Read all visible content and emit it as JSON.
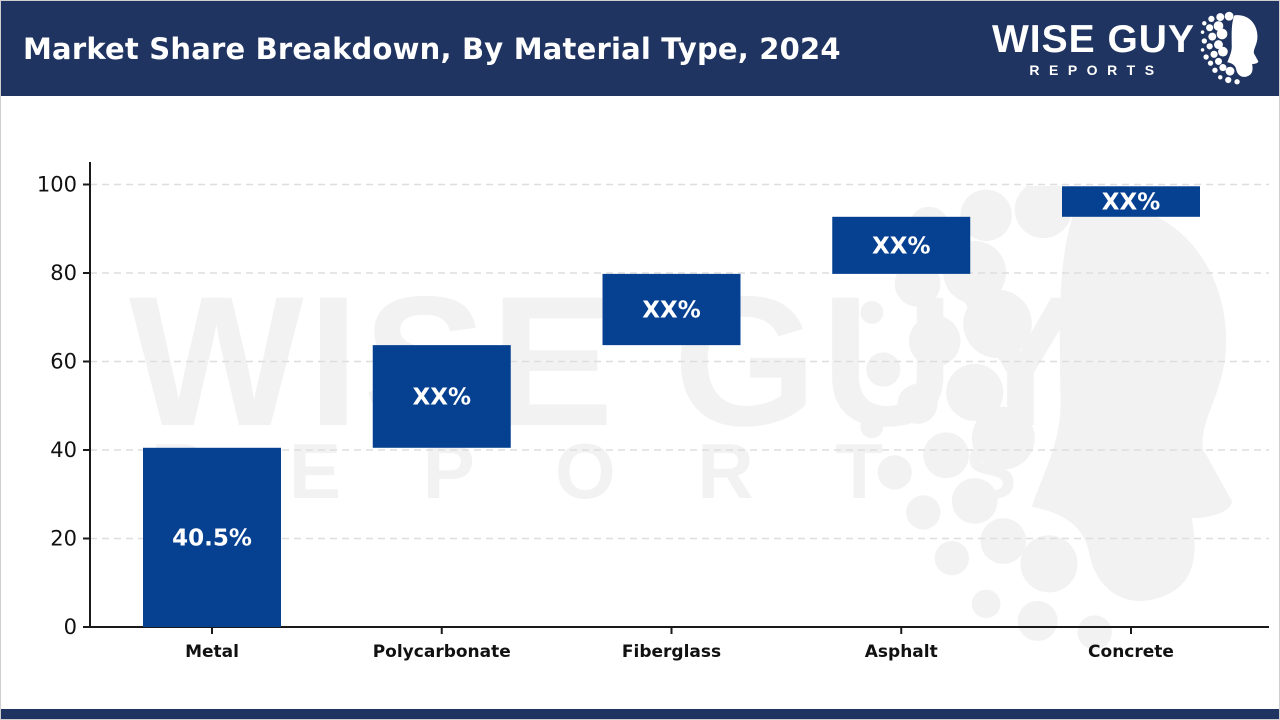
{
  "header": {
    "title": "Market Share Breakdown, By Material Type, 2024",
    "logo": {
      "line1": "WISE GUY",
      "line2": "REPORTS"
    }
  },
  "watermark": {
    "line1": "WISE GUY",
    "line2": "R E P O R T S"
  },
  "colors": {
    "header_bg": "#1f3460",
    "footer_bg": "#1f3460",
    "bar": "#064191",
    "bar_label": "#ffffff",
    "axis": "#1a1a1a",
    "grid": "#dedede",
    "tick_label": "#111111",
    "category_label": "#111111",
    "watermark": "#f2f2f2",
    "logo_text": "#ffffff"
  },
  "chart_data": {
    "type": "bar",
    "subtype": "waterfall",
    "title": "Market Share Breakdown, By Material Type, 2024",
    "categories": [
      "Metal",
      "Polycarbonate",
      "Fiberglass",
      "Asphalt",
      "Concrete"
    ],
    "segments": [
      {
        "category": "Metal",
        "start": 0,
        "end": 40.5,
        "label": "40.5%"
      },
      {
        "category": "Polycarbonate",
        "start": 40.5,
        "end": 63.7,
        "label": "XX%"
      },
      {
        "category": "Fiberglass",
        "start": 63.7,
        "end": 79.8,
        "label": "XX%"
      },
      {
        "category": "Asphalt",
        "start": 79.8,
        "end": 92.7,
        "label": "XX%"
      },
      {
        "category": "Concrete",
        "start": 92.7,
        "end": 99.6,
        "label": "XX%"
      }
    ],
    "xlabel": "",
    "ylabel": "",
    "ylim": [
      0,
      100
    ],
    "yticks": [
      0,
      20,
      40,
      60,
      80,
      100
    ],
    "grid": "horizontal-dashed",
    "legend": "none"
  }
}
